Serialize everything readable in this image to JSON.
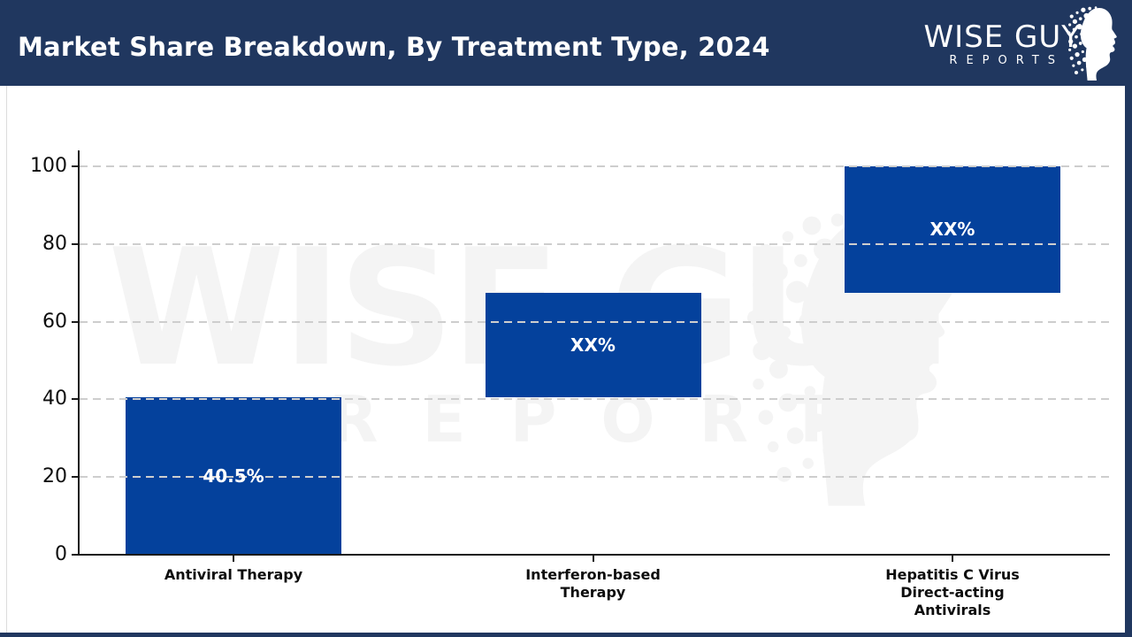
{
  "header": {
    "title": "Market Share Breakdown, By Treatment Type, 2024",
    "logo": {
      "line1": "WISE GUY",
      "line2": "REPORTS"
    }
  },
  "watermark": {
    "line1": "WISE GUY",
    "line2": "REPORTS"
  },
  "colors": {
    "header_bg": "#20375f",
    "bar": "#04419c",
    "bar_label": "#ffffff",
    "gridline": "#cecece",
    "axis": "#1a1a1a",
    "watermark": "#f4f4f4",
    "title_text": "#ffffff"
  },
  "chart_data": {
    "type": "bar",
    "subtype": "waterfall",
    "title": "Market Share Breakdown, By Treatment Type, 2024",
    "categories": [
      "Antiviral Therapy",
      "Interferon-based Therapy",
      "Hepatitis C Virus Direct-acting Antivirals"
    ],
    "category_label_lines": [
      [
        "Antiviral Therapy"
      ],
      [
        "Interferon-based",
        "Therapy"
      ],
      [
        "Hepatitis C Virus",
        "Direct-acting",
        "Antivirals"
      ]
    ],
    "segments": [
      {
        "category": "Antiviral Therapy",
        "start": 0,
        "end": 40.5,
        "label": "40.5%"
      },
      {
        "category": "Interferon-based Therapy",
        "start": 40.5,
        "end": 67.5,
        "label": "XX%"
      },
      {
        "category": "Hepatitis C Virus Direct-acting Antivirals",
        "start": 67.5,
        "end": 100,
        "label": "XX%"
      }
    ],
    "yticks": [
      0,
      20,
      40,
      60,
      80,
      100
    ],
    "ylim": [
      0,
      104
    ],
    "xlabel": "",
    "ylabel": "",
    "grid": "dashed-horizontal",
    "legend": "none"
  }
}
